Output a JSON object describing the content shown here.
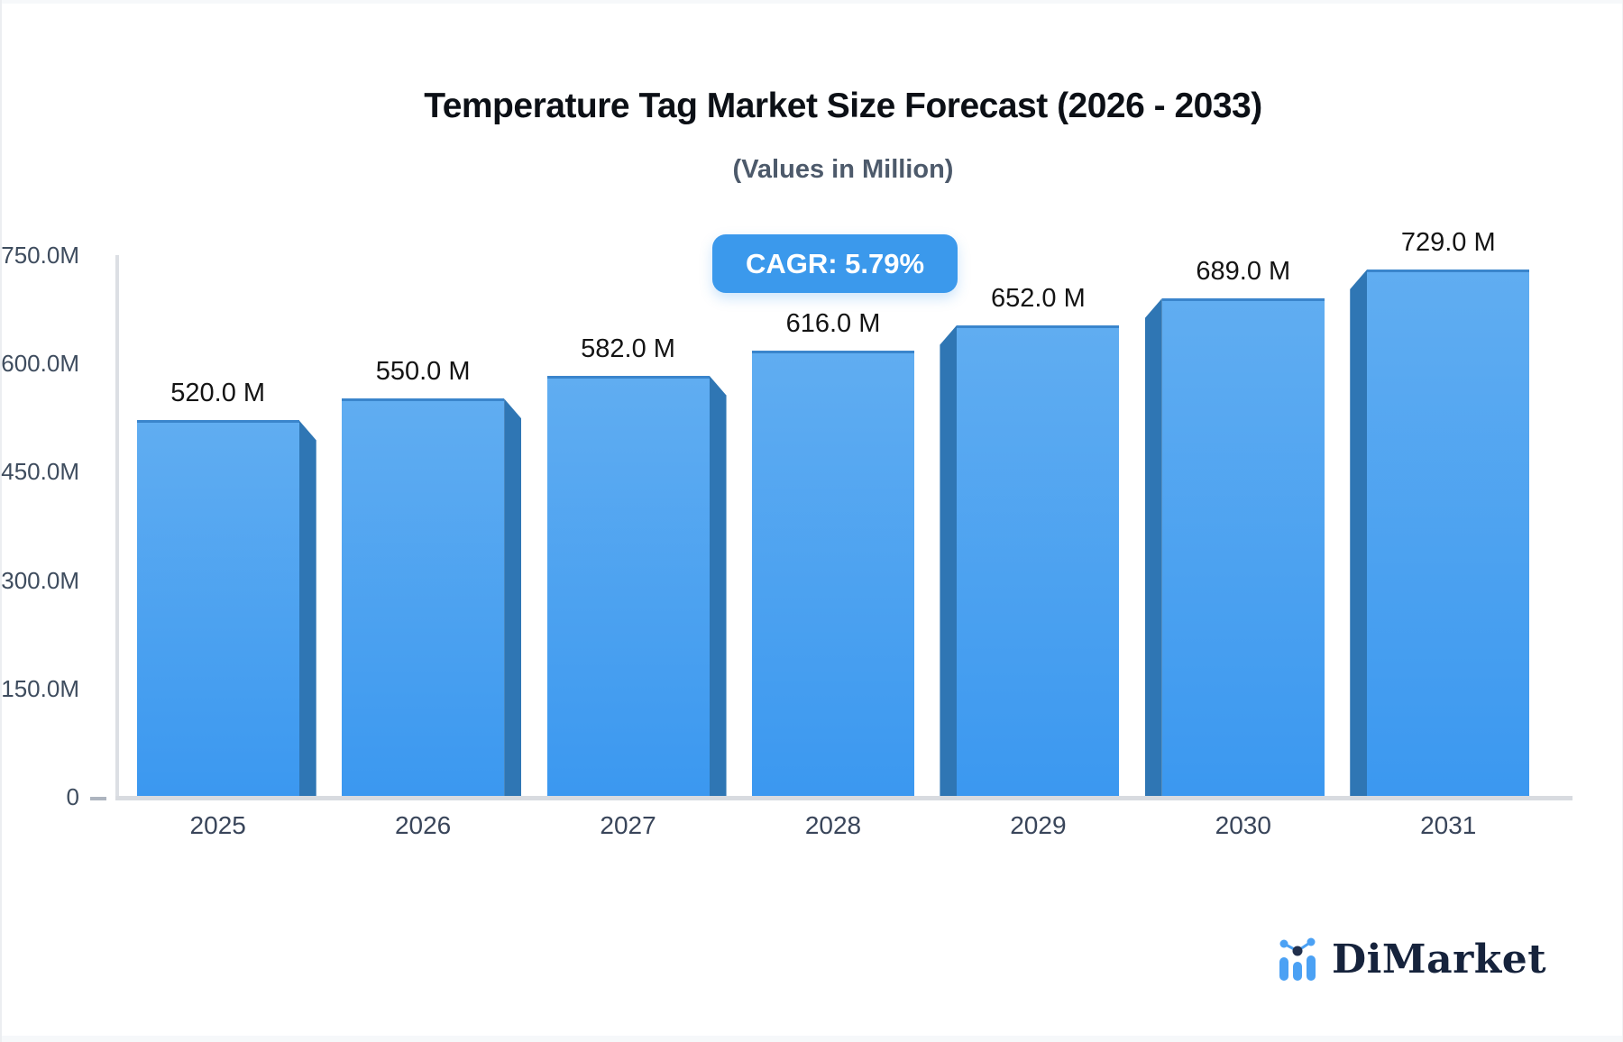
{
  "header": {
    "title": "Temperature Tag Market Size Forecast (2026 - 2033)",
    "subtitle": "(Values in Million)",
    "cagr_label": "CAGR: 5.79%"
  },
  "chart_data": {
    "type": "bar",
    "title": "Temperature Tag Market Size Forecast (2026 - 2033)",
    "subtitle": "(Values in Million)",
    "categories": [
      "2025",
      "2026",
      "2027",
      "2028",
      "2029",
      "2030",
      "2031"
    ],
    "values": [
      520,
      550,
      582,
      616,
      652,
      689,
      729
    ],
    "value_labels": [
      "520.0 M",
      "550.0 M",
      "582.0 M",
      "616.0 M",
      "652.0 M",
      "689.0 M",
      "729.0 M"
    ],
    "unit": "Million",
    "y_ticks": [
      {
        "value": 750,
        "label": "750.0M"
      },
      {
        "value": 600,
        "label": "600.0M"
      },
      {
        "value": 450,
        "label": "450.0M"
      },
      {
        "value": 300,
        "label": "300.0M"
      },
      {
        "value": 150,
        "label": "150.0M"
      },
      {
        "value": 0,
        "label": "0"
      }
    ],
    "ylim": [
      0,
      750
    ],
    "grid": false,
    "legend": false,
    "bar_style": "3d-perspective-toward-center"
  },
  "branding": {
    "logo_text": "DiMarket",
    "logo_icon": "bar-chart-line-logo-icon"
  },
  "colors": {
    "bar_face_top": "#60ADF1",
    "bar_face_bottom": "#3B98F0",
    "bar_top_edge": "#3A85CC",
    "bar_side": "#2F76B4",
    "badge_background": "#3B99EC",
    "badge_text": "#ffffff",
    "axis_line": "#dcdfe4",
    "baseline": "#d8dbe0",
    "title_text": "#0c1016",
    "subtitle_text": "#4d5a6b",
    "axis_label_text": "#3e4c5e",
    "logo_blue": "#4BA1F4",
    "logo_navy": "#16233c"
  }
}
